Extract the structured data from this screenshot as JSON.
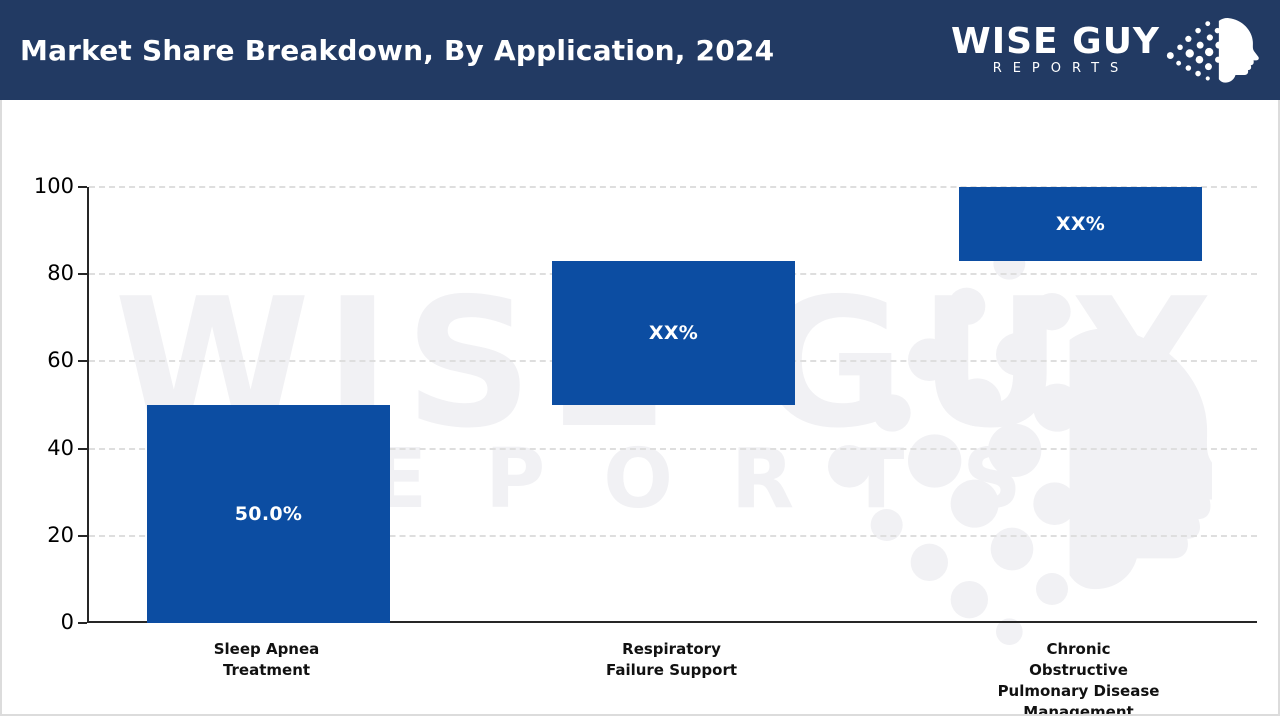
{
  "header": {
    "title": "Market Share Breakdown, By Application, 2024",
    "bg_color": "#223a63",
    "logo": {
      "line1": "WISE GUY",
      "line2": "REPORTS"
    }
  },
  "watermark": {
    "line1": "WISE GUY",
    "line2": "REPORTS"
  },
  "chart_data": {
    "type": "bar",
    "subtype": "floating-segment-waterfall",
    "title": "Market Share Breakdown, By Application, 2024",
    "categories": [
      "Sleep Apnea\nTreatment",
      "Respiratory\nFailure Support",
      "Chronic\nObstructive\nPulmonary Disease\nManagement"
    ],
    "series": [
      {
        "name": "Market Share",
        "segments": [
          {
            "category": "Sleep Apnea Treatment",
            "start": 0,
            "end": 50,
            "label": "50.0%"
          },
          {
            "category": "Respiratory Failure Support",
            "start": 50,
            "end": 83,
            "label": "XX%"
          },
          {
            "category": "Chronic Obstructive Pulmonary Disease Management",
            "start": 83,
            "end": 100,
            "label": "XX%"
          }
        ]
      }
    ],
    "xlabel": "",
    "ylabel": "",
    "ylim": [
      0,
      100
    ],
    "yticks": [
      0,
      20,
      40,
      60,
      80,
      100
    ],
    "grid": "horizontal-dashed",
    "legend": "none",
    "bar_color": "#0c4da2",
    "grid_color": "#dedede",
    "axis_color": "#262626"
  }
}
